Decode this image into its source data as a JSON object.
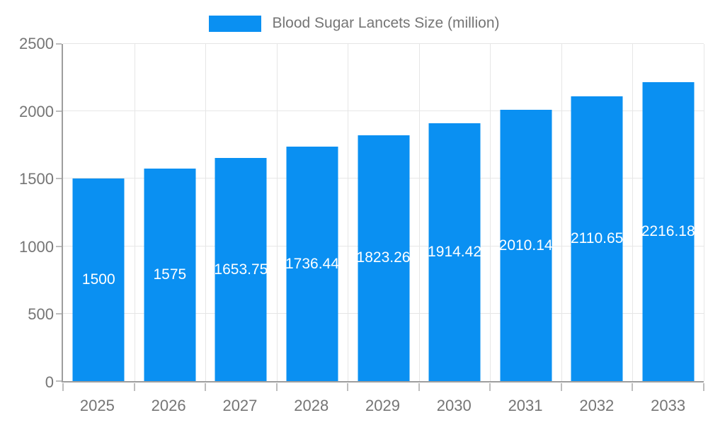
{
  "colors": {
    "bar": "#0a90f2",
    "grid": "#e6e6e6",
    "axis_line": "#9e9e9e",
    "tick": "#bdbdbd",
    "axis_text": "#757575",
    "value_text": "#ffffff",
    "background": "#ffffff"
  },
  "legend": {
    "label": "Blood Sugar Lancets Size (million)"
  },
  "chart_data": {
    "type": "bar",
    "title": "Blood Sugar Lancets Size (million)",
    "categories": [
      "2025",
      "2026",
      "2027",
      "2028",
      "2029",
      "2030",
      "2031",
      "2032",
      "2033"
    ],
    "series": [
      {
        "name": "Blood Sugar Lancets Size (million)",
        "values": [
          1500,
          1575,
          1653.75,
          1736.44,
          1823.26,
          1914.42,
          2010.14,
          2110.65,
          2216.18
        ]
      }
    ],
    "value_labels": [
      "1500",
      "1575",
      "1653.75",
      "1736.44",
      "1823.26",
      "1914.42",
      "2010.14",
      "2110.65",
      "2216.18"
    ],
    "xlabel": "",
    "ylabel": "",
    "ylim": [
      0,
      2500
    ],
    "yticks": [
      0,
      500,
      1000,
      1500,
      2000,
      2500
    ],
    "grid": true,
    "legend_position": "top-center",
    "value_label_position": "inside-middle-clipped"
  }
}
